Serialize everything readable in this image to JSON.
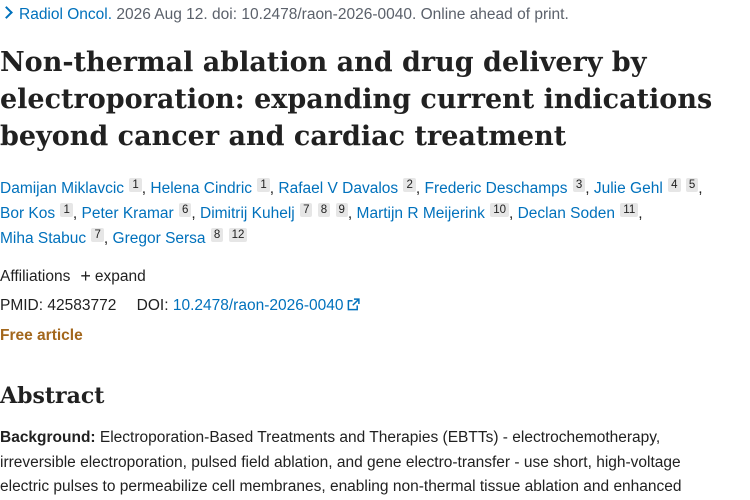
{
  "citation": {
    "journal": "Radiol Oncol.",
    "details": " 2026 Aug 12. doi: 10.2478/raon-2026-0040. Online ahead of print."
  },
  "article": {
    "title_lines": [
      "Non-thermal ablation and drug delivery by",
      "electroporation: expanding current indications",
      "beyond cancer and cardiac treatment"
    ]
  },
  "authors": [
    {
      "name": "Damijan Miklavcic",
      "affs": [
        "1"
      ]
    },
    {
      "name": "Helena Cindric",
      "affs": [
        "1"
      ]
    },
    {
      "name": "Rafael V Davalos",
      "affs": [
        "2"
      ]
    },
    {
      "name": "Frederic Deschamps",
      "affs": [
        "3"
      ]
    },
    {
      "name": "Julie Gehl",
      "affs": [
        "4",
        "5"
      ]
    },
    {
      "name": "Bor Kos",
      "affs": [
        "1"
      ]
    },
    {
      "name": "Peter Kramar",
      "affs": [
        "6"
      ]
    },
    {
      "name": "Dimitrij Kuhelj",
      "affs": [
        "7",
        "8",
        "9"
      ]
    },
    {
      "name": "Martijn R Meijerink",
      "affs": [
        "10"
      ]
    },
    {
      "name": "Declan Soden",
      "affs": [
        "11"
      ]
    },
    {
      "name": "Miha Stabuc",
      "affs": [
        "7"
      ]
    },
    {
      "name": "Gregor Sersa",
      "affs": [
        "8",
        "12"
      ]
    }
  ],
  "affiliations": {
    "label": "Affiliations",
    "expand_label": "expand"
  },
  "identifiers": {
    "pmid_label": "PMID:",
    "pmid": "42583772",
    "doi_label": "DOI:",
    "doi": "10.2478/raon-2026-0040"
  },
  "free_article_label": "Free article",
  "abstract": {
    "heading": "Abstract",
    "background_label": "Background:",
    "background_lines": [
      " Electroporation-Based Treatments and Therapies (EBTTs) - electrochemotherapy,",
      "irreversible electroporation, pulsed field ablation, and gene electro-transfer - use short, high-voltage",
      "electric pulses to permeabilize cell membranes, enabling non-thermal tissue ablation and enhanced"
    ]
  },
  "colors": {
    "link": "#0071bc",
    "free_article": "#a3671c",
    "text": "#212121",
    "muted": "#5b616b",
    "aff_badge_bg": "#e6e6e6"
  },
  "icons": {
    "chevron": "chevron-right-icon",
    "expand": "plus-icon",
    "external": "external-link-icon"
  }
}
